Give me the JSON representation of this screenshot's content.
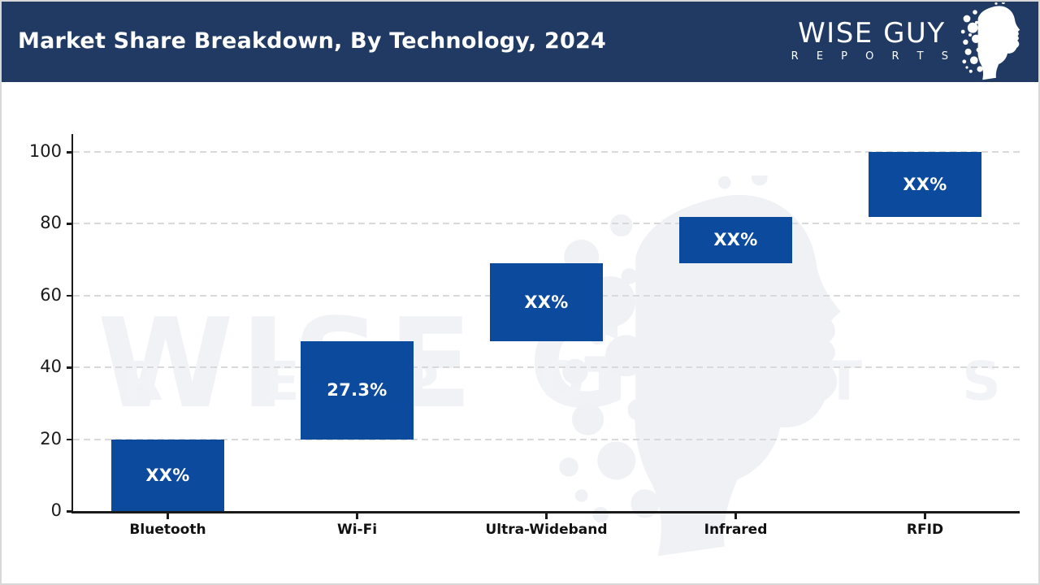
{
  "header": {
    "title": "Market Share Breakdown, By Technology, 2024",
    "logo": {
      "line1": "WISE GUY",
      "line2": "R E P O R T S",
      "face_icon": "dotted-head-profile"
    },
    "background_color": "#203a64"
  },
  "watermark": {
    "line1": "WISE GUY",
    "line2": "R E P O R T S",
    "face_icon": "dotted-head-profile",
    "color": "#f1f2f5"
  },
  "chart_data": {
    "type": "bar",
    "subtype": "waterfall",
    "title": "Market Share Breakdown, By Technology, 2024",
    "xlabel": "",
    "ylabel": "",
    "categories": [
      "Bluetooth",
      "Wi-Fi",
      "Ultra-Wideband",
      "Infrared",
      "RFID"
    ],
    "segments": [
      {
        "category": "Bluetooth",
        "start": 0,
        "end": 20,
        "label": "XX%"
      },
      {
        "category": "Wi-Fi",
        "start": 20,
        "end": 47.3,
        "label": "27.3%"
      },
      {
        "category": "Ultra-Wideband",
        "start": 47.3,
        "end": 69.1,
        "label": "XX%"
      },
      {
        "category": "Infrared",
        "start": 69.1,
        "end": 81.9,
        "label": "XX%"
      },
      {
        "category": "RFID",
        "start": 81.9,
        "end": 100,
        "label": "XX%"
      }
    ],
    "yticks": [
      0,
      20,
      40,
      60,
      80,
      100
    ],
    "ylim": [
      0,
      105
    ],
    "grid": "dashed-horizontal",
    "legend": "none",
    "bar_color": "#0c4a9e",
    "bar_label_color": "#ffffff",
    "axis_color": "#1a1a1a",
    "gridline_color": "#d9d9d9"
  }
}
